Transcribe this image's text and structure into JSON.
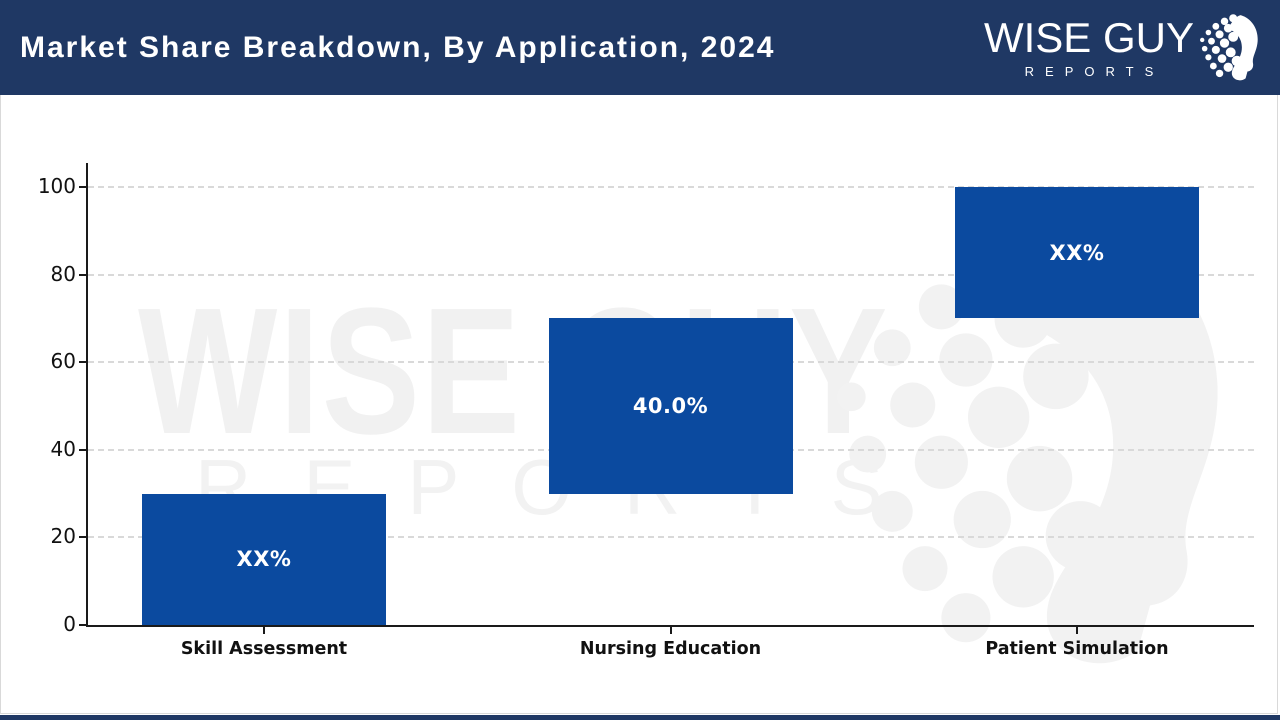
{
  "header": {
    "title": "Market Share Breakdown, By Application, 2024",
    "bg_color": "#1f3864",
    "logo": {
      "line1": "WISE GUY",
      "line2": "REPORTS"
    }
  },
  "watermark": {
    "line1": "WISE GUY",
    "line2": "REPORTS"
  },
  "chart_data": {
    "type": "bar",
    "subtype": "floating-waterfall",
    "title": "Market Share Breakdown, By Application, 2024",
    "categories": [
      "Skill Assessment",
      "Nursing Education",
      "Patient Simulation"
    ],
    "segments": [
      {
        "category": "Skill Assessment",
        "from": 0,
        "to": 30,
        "label": "XX%"
      },
      {
        "category": "Nursing Education",
        "from": 30,
        "to": 70,
        "label": "40.0%"
      },
      {
        "category": "Patient Simulation",
        "from": 70,
        "to": 100,
        "label": "XX%"
      }
    ],
    "y_ticks": [
      0,
      20,
      40,
      60,
      80,
      100
    ],
    "ylim": [
      0,
      100
    ],
    "xlabel": "",
    "ylabel": "",
    "legend": "none",
    "grid": "horizontal-dashed",
    "bar_color": "#0b4a9f",
    "bar_label_color": "#ffffff",
    "axis_color": "#1a1a1a"
  }
}
